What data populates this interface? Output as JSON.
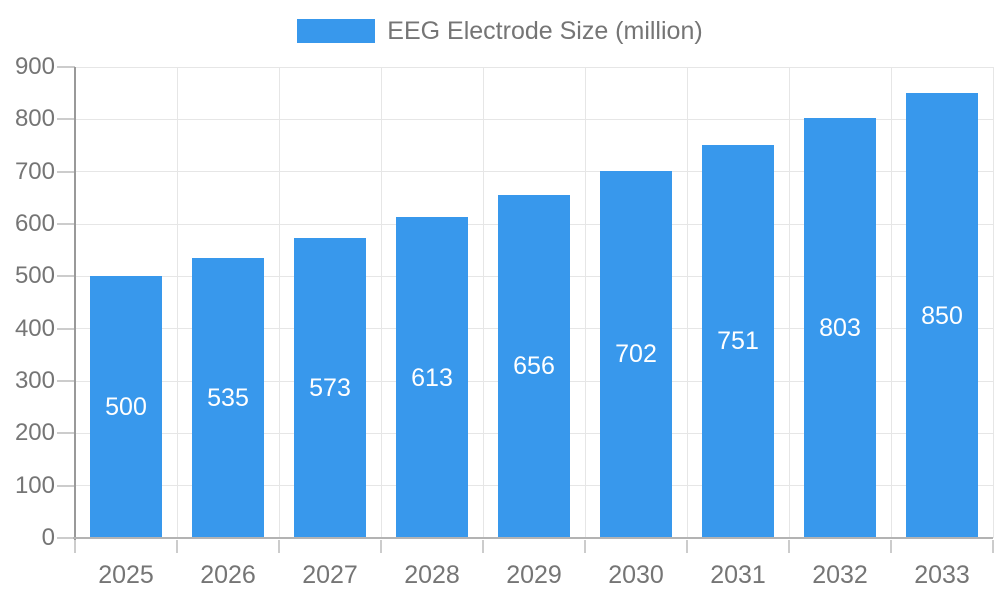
{
  "chart_data": {
    "type": "bar",
    "title": "",
    "legend": {
      "label": "EEG Electrode Size (million)",
      "position": "top"
    },
    "categories": [
      "2025",
      "2026",
      "2027",
      "2028",
      "2029",
      "2030",
      "2031",
      "2032",
      "2033"
    ],
    "series": [
      {
        "name": "EEG Electrode Size (million)",
        "values": [
          500,
          535,
          573,
          613,
          656,
          702,
          751,
          803,
          850
        ]
      }
    ],
    "bar_value_labels": [
      "500",
      "535",
      "573",
      "613",
      "656",
      "702",
      "751",
      "803",
      "850"
    ],
    "xlabel": "",
    "ylabel": "",
    "ylim": [
      0,
      900
    ],
    "y_ticks": [
      0,
      100,
      200,
      300,
      400,
      500,
      600,
      700,
      800,
      900
    ],
    "grid": "on",
    "colors": {
      "bar": "#3898ec",
      "bar_label_text": "#ffffff",
      "axis_text": "#757575",
      "gridline": "#e6e6e6",
      "axis_line": "#b3b3b3",
      "y_axis_line": "#999999",
      "tick": "#cccccc",
      "background": "#ffffff"
    }
  }
}
